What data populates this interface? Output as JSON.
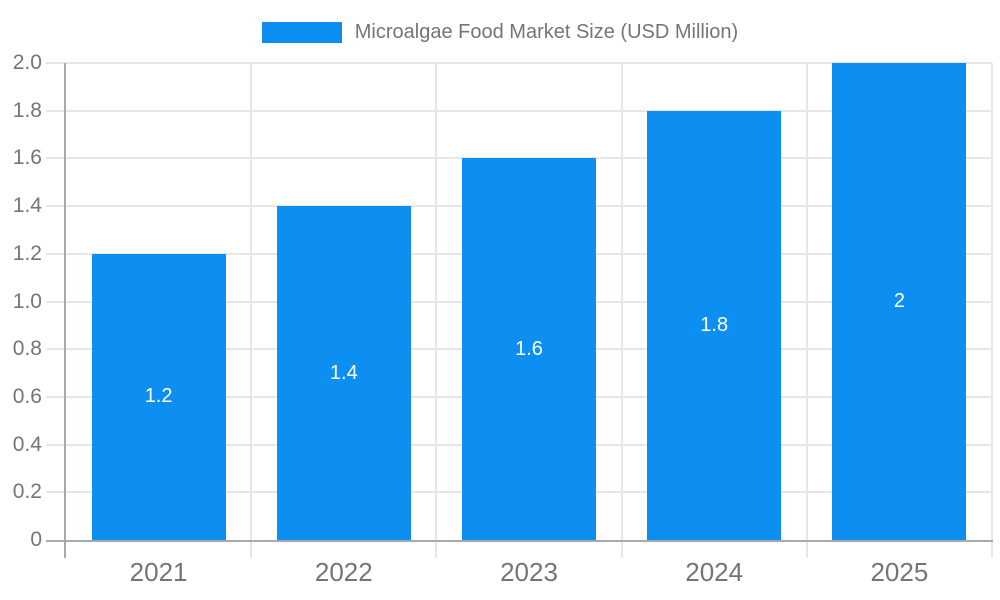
{
  "chart_data": {
    "type": "bar",
    "title": "Microalgae Food Market Size (USD Million)",
    "categories": [
      "2021",
      "2022",
      "2023",
      "2024",
      "2025"
    ],
    "values": [
      1.2,
      1.4,
      1.6,
      1.8,
      2
    ],
    "bar_labels": [
      "1.2",
      "1.4",
      "1.6",
      "1.8",
      "2"
    ],
    "y_ticks": [
      {
        "value": 0,
        "label": "0"
      },
      {
        "value": 0.2,
        "label": "0.2"
      },
      {
        "value": 0.4,
        "label": "0.4"
      },
      {
        "value": 0.6,
        "label": "0.6"
      },
      {
        "value": 0.8,
        "label": "0.8"
      },
      {
        "value": 1.0,
        "label": "1.0"
      },
      {
        "value": 1.2,
        "label": "1.2"
      },
      {
        "value": 1.4,
        "label": "1.4"
      },
      {
        "value": 1.6,
        "label": "1.6"
      },
      {
        "value": 1.8,
        "label": "1.8"
      },
      {
        "value": 2.0,
        "label": "2.0"
      }
    ],
    "ylim": [
      0,
      2
    ],
    "xlabel": "",
    "ylabel": "",
    "grid": true,
    "legend_position": "top-center",
    "colors": {
      "bar": "#0d8ff2",
      "bar_label": "#ffffff",
      "axis_label": "#757575",
      "gridline": "#e6e6e6",
      "axis_line": "#a9a9a9",
      "background": "#ffffff"
    }
  }
}
